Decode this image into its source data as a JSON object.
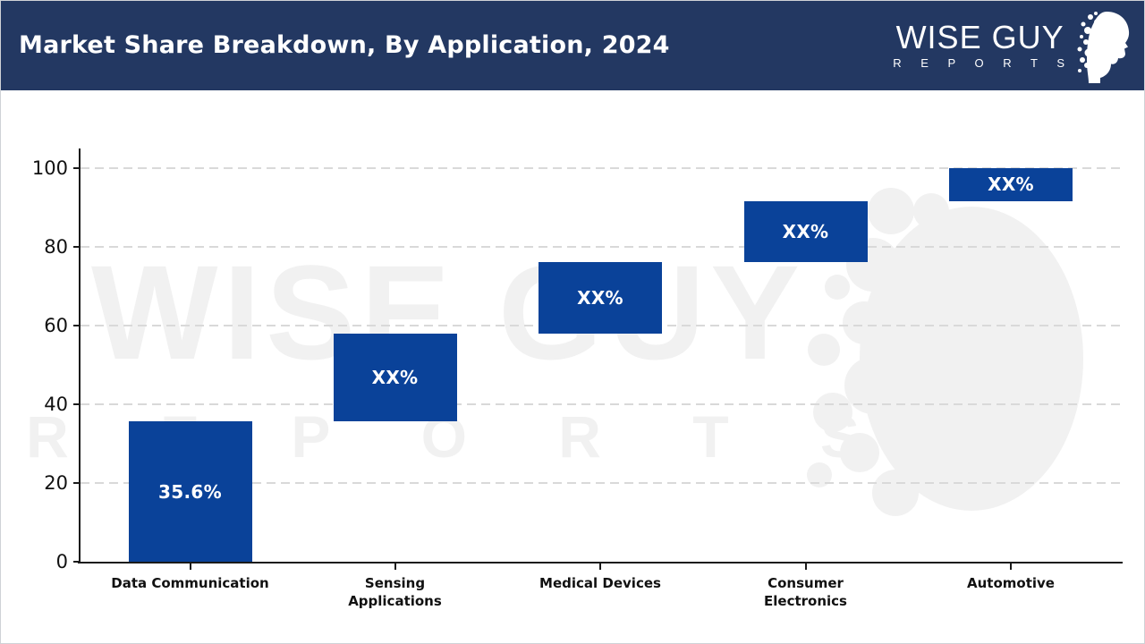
{
  "header": {
    "title": "Market Share Breakdown, By Application, 2024",
    "logo": {
      "line1": "WISE GUY",
      "line2": "R E P O R T S"
    }
  },
  "watermark": {
    "line1": "WISE GUY",
    "line2": "R E P O R T S"
  },
  "colors": {
    "header_bg": "#233862",
    "bar": "#0a4299",
    "bar_label": "#ffffff",
    "axis": "#1a1a1a",
    "gridline": "#d9d9d9",
    "watermark": "#f1f1f1"
  },
  "chart_data": {
    "type": "bar",
    "subtype": "waterfall",
    "title": "Market Share Breakdown, By Application, 2024",
    "xlabel": "",
    "ylabel": "",
    "ylim": [
      0,
      100
    ],
    "yticks": [
      0,
      20,
      40,
      60,
      80,
      100
    ],
    "grid": "dashed horizontal gridlines",
    "legend": "none",
    "categories": [
      "Data Communication",
      "Sensing Applications",
      "Medical Devices",
      "Consumer Electronics",
      "Automotive"
    ],
    "bars": [
      {
        "category": "Data Communication",
        "label_lines": [
          "Data Communication"
        ],
        "start": 0,
        "end": 35.6,
        "label": "35.6%"
      },
      {
        "category": "Sensing Applications",
        "label_lines": [
          "Sensing",
          "Applications"
        ],
        "start": 35.6,
        "end": 58,
        "label": "XX%"
      },
      {
        "category": "Medical Devices",
        "label_lines": [
          "Medical Devices"
        ],
        "start": 58,
        "end": 76,
        "label": "XX%"
      },
      {
        "category": "Consumer Electronics",
        "label_lines": [
          "Consumer",
          "Electronics"
        ],
        "start": 76,
        "end": 91.5,
        "label": "XX%"
      },
      {
        "category": "Automotive",
        "label_lines": [
          "Automotive"
        ],
        "start": 91.5,
        "end": 100,
        "label": "XX%"
      }
    ]
  }
}
